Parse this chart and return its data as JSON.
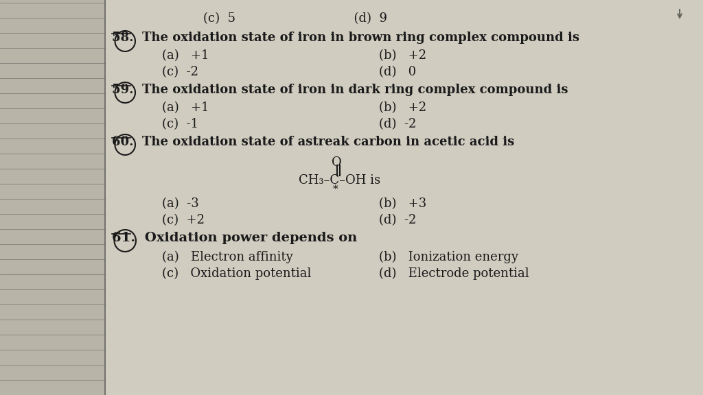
{
  "bg_color": "#d0ccc0",
  "left_panel_color": "#b8b4a8",
  "text_color": "#1a1a1a",
  "title_top": "(c)  5                              (d)  9",
  "q58": "58.  The oxidation state of iron in brown ring complex compound is",
  "q58_a": "(a)   +1",
  "q58_b": "(b)   +2",
  "q58_c": "(c)  -2",
  "q58_d": "(d)   0",
  "q59": "59.  The oxidation state of iron in dark ring complex compound is",
  "q59_a": "(a)   +1",
  "q59_b": "(b)   +2",
  "q59_c": "(c)  -1",
  "q59_d": "(d)  -2",
  "q60": "60.  The oxidation state of astreak carbon in acetic acid is",
  "q60_chem": "CH₃–C–OH is",
  "q60_O": "O",
  "q60_a": "(a)  -3",
  "q60_b": "(b)   +3",
  "q60_c": "(c)  +2",
  "q60_d": "(d)  -2",
  "q61": "61.  Oxidation power depends on",
  "q61_a": "(a)   Electron affinity",
  "q61_b": "(b)   Ionization energy",
  "q61_c": "(c)   Oxidation potential",
  "q61_d": "(d)   Electrode potential"
}
